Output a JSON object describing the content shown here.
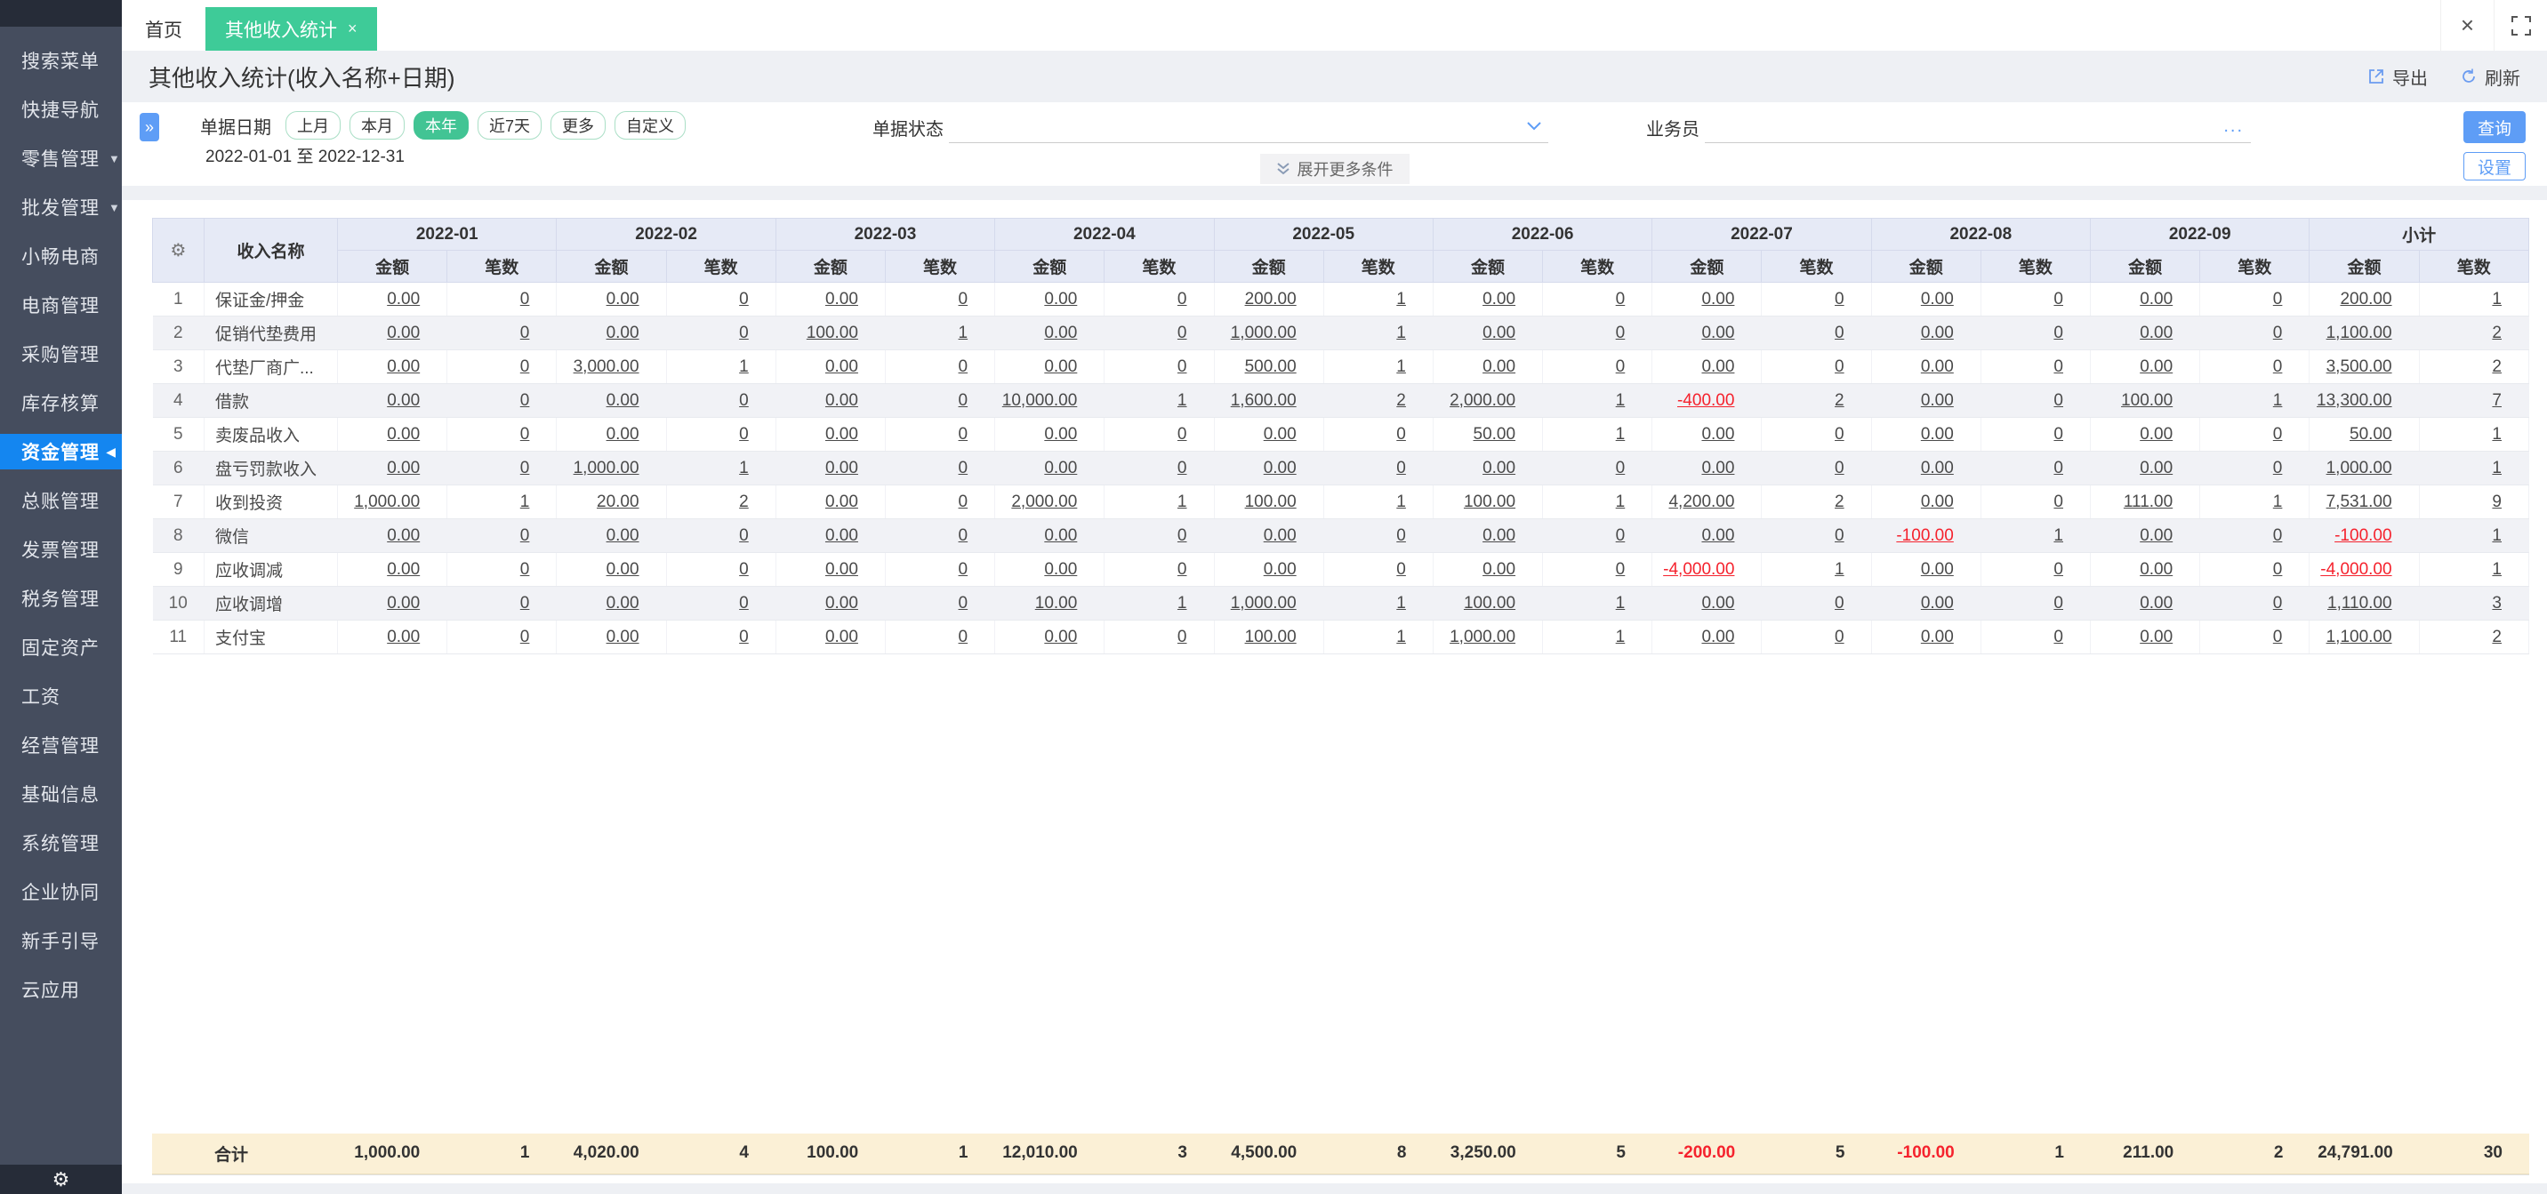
{
  "colors": {
    "sidebar_bg": "#454d5e",
    "sidebar_dark": "#262c38",
    "active_blue": "#1486f0",
    "tab_green": "#3ecb98",
    "pill_green": "#42c494",
    "button_blue": "#5e9df6",
    "header_bg": "#e6eaf6",
    "totals_bg": "#fbf0d6",
    "negative_red": "#f5222d",
    "titlebar_bg": "#eef0f4"
  },
  "sidebar": {
    "items": [
      {
        "label": "搜索菜单"
      },
      {
        "label": "快捷导航"
      },
      {
        "label": "零售管理",
        "expandable": true
      },
      {
        "label": "批发管理",
        "expandable": true
      },
      {
        "label": "小畅电商"
      },
      {
        "label": "电商管理"
      },
      {
        "label": "采购管理"
      },
      {
        "label": "库存核算"
      },
      {
        "label": "资金管理",
        "active": true
      },
      {
        "label": "总账管理"
      },
      {
        "label": "发票管理"
      },
      {
        "label": "税务管理"
      },
      {
        "label": "固定资产"
      },
      {
        "label": "工资"
      },
      {
        "label": "经营管理"
      },
      {
        "label": "基础信息"
      },
      {
        "label": "系统管理"
      },
      {
        "label": "企业协同"
      },
      {
        "label": "新手引导"
      },
      {
        "label": "云应用"
      }
    ],
    "gear_icon": "⚙"
  },
  "tabs": {
    "home": "首页",
    "active": "其他收入统计",
    "close": "×",
    "window_close": "×"
  },
  "page": {
    "title": "其他收入统计(收入名称+日期)",
    "export_label": "导出",
    "refresh_label": "刷新"
  },
  "filters": {
    "collapse_icon": "»",
    "date_label": "单据日期",
    "date_pills": [
      {
        "label": "上月"
      },
      {
        "label": "本月"
      },
      {
        "label": "本年",
        "active": true
      },
      {
        "label": "近7天"
      },
      {
        "label": "更多"
      },
      {
        "label": "自定义"
      }
    ],
    "date_range": "2022-01-01 至 2022-12-31",
    "status_label": "单据状态",
    "status_value": "",
    "seller_label": "业务员",
    "seller_value": "",
    "seller_more": "...",
    "query_label": "查询",
    "setting_label": "设置",
    "expand_more_label": "展开更多条件"
  },
  "table": {
    "gear_icon": "⚙",
    "name_header": "收入名称",
    "sub_amount": "金额",
    "sub_count": "笔数",
    "months": [
      "2022-01",
      "2022-02",
      "2022-03",
      "2022-04",
      "2022-05",
      "2022-06",
      "2022-07",
      "2022-08",
      "2022-09",
      "小计"
    ],
    "rows": [
      {
        "index": "1",
        "name": "保证金/押金",
        "cells": [
          [
            "0.00",
            "0"
          ],
          [
            "0.00",
            "0"
          ],
          [
            "0.00",
            "0"
          ],
          [
            "0.00",
            "0"
          ],
          [
            "200.00",
            "1"
          ],
          [
            "0.00",
            "0"
          ],
          [
            "0.00",
            "0"
          ],
          [
            "0.00",
            "0"
          ],
          [
            "0.00",
            "0"
          ],
          [
            "200.00",
            "1"
          ]
        ]
      },
      {
        "index": "2",
        "name": "促销代垫费用",
        "cells": [
          [
            "0.00",
            "0"
          ],
          [
            "0.00",
            "0"
          ],
          [
            "100.00",
            "1"
          ],
          [
            "0.00",
            "0"
          ],
          [
            "1,000.00",
            "1"
          ],
          [
            "0.00",
            "0"
          ],
          [
            "0.00",
            "0"
          ],
          [
            "0.00",
            "0"
          ],
          [
            "0.00",
            "0"
          ],
          [
            "1,100.00",
            "2"
          ]
        ]
      },
      {
        "index": "3",
        "name": "代垫厂商广...",
        "cells": [
          [
            "0.00",
            "0"
          ],
          [
            "3,000.00",
            "1"
          ],
          [
            "0.00",
            "0"
          ],
          [
            "0.00",
            "0"
          ],
          [
            "500.00",
            "1"
          ],
          [
            "0.00",
            "0"
          ],
          [
            "0.00",
            "0"
          ],
          [
            "0.00",
            "0"
          ],
          [
            "0.00",
            "0"
          ],
          [
            "3,500.00",
            "2"
          ]
        ]
      },
      {
        "index": "4",
        "name": "借款",
        "cells": [
          [
            "0.00",
            "0"
          ],
          [
            "0.00",
            "0"
          ],
          [
            "0.00",
            "0"
          ],
          [
            "10,000.00",
            "1"
          ],
          [
            "1,600.00",
            "2"
          ],
          [
            "2,000.00",
            "1"
          ],
          [
            "-400.00",
            "2"
          ],
          [
            "0.00",
            "0"
          ],
          [
            "100.00",
            "1"
          ],
          [
            "13,300.00",
            "7"
          ]
        ]
      },
      {
        "index": "5",
        "name": "卖废品收入",
        "cells": [
          [
            "0.00",
            "0"
          ],
          [
            "0.00",
            "0"
          ],
          [
            "0.00",
            "0"
          ],
          [
            "0.00",
            "0"
          ],
          [
            "0.00",
            "0"
          ],
          [
            "50.00",
            "1"
          ],
          [
            "0.00",
            "0"
          ],
          [
            "0.00",
            "0"
          ],
          [
            "0.00",
            "0"
          ],
          [
            "50.00",
            "1"
          ]
        ]
      },
      {
        "index": "6",
        "name": "盘亏罚款收入",
        "cells": [
          [
            "0.00",
            "0"
          ],
          [
            "1,000.00",
            "1"
          ],
          [
            "0.00",
            "0"
          ],
          [
            "0.00",
            "0"
          ],
          [
            "0.00",
            "0"
          ],
          [
            "0.00",
            "0"
          ],
          [
            "0.00",
            "0"
          ],
          [
            "0.00",
            "0"
          ],
          [
            "0.00",
            "0"
          ],
          [
            "1,000.00",
            "1"
          ]
        ]
      },
      {
        "index": "7",
        "name": "收到投资",
        "cells": [
          [
            "1,000.00",
            "1"
          ],
          [
            "20.00",
            "2"
          ],
          [
            "0.00",
            "0"
          ],
          [
            "2,000.00",
            "1"
          ],
          [
            "100.00",
            "1"
          ],
          [
            "100.00",
            "1"
          ],
          [
            "4,200.00",
            "2"
          ],
          [
            "0.00",
            "0"
          ],
          [
            "111.00",
            "1"
          ],
          [
            "7,531.00",
            "9"
          ]
        ]
      },
      {
        "index": "8",
        "name": "微信",
        "cells": [
          [
            "0.00",
            "0"
          ],
          [
            "0.00",
            "0"
          ],
          [
            "0.00",
            "0"
          ],
          [
            "0.00",
            "0"
          ],
          [
            "0.00",
            "0"
          ],
          [
            "0.00",
            "0"
          ],
          [
            "0.00",
            "0"
          ],
          [
            "-100.00",
            "1"
          ],
          [
            "0.00",
            "0"
          ],
          [
            "-100.00",
            "1"
          ]
        ]
      },
      {
        "index": "9",
        "name": "应收调减",
        "cells": [
          [
            "0.00",
            "0"
          ],
          [
            "0.00",
            "0"
          ],
          [
            "0.00",
            "0"
          ],
          [
            "0.00",
            "0"
          ],
          [
            "0.00",
            "0"
          ],
          [
            "0.00",
            "0"
          ],
          [
            "-4,000.00",
            "1"
          ],
          [
            "0.00",
            "0"
          ],
          [
            "0.00",
            "0"
          ],
          [
            "-4,000.00",
            "1"
          ]
        ]
      },
      {
        "index": "10",
        "name": "应收调增",
        "cells": [
          [
            "0.00",
            "0"
          ],
          [
            "0.00",
            "0"
          ],
          [
            "0.00",
            "0"
          ],
          [
            "10.00",
            "1"
          ],
          [
            "1,000.00",
            "1"
          ],
          [
            "100.00",
            "1"
          ],
          [
            "0.00",
            "0"
          ],
          [
            "0.00",
            "0"
          ],
          [
            "0.00",
            "0"
          ],
          [
            "1,110.00",
            "3"
          ]
        ]
      },
      {
        "index": "11",
        "name": "支付宝",
        "cells": [
          [
            "0.00",
            "0"
          ],
          [
            "0.00",
            "0"
          ],
          [
            "0.00",
            "0"
          ],
          [
            "0.00",
            "0"
          ],
          [
            "100.00",
            "1"
          ],
          [
            "1,000.00",
            "1"
          ],
          [
            "0.00",
            "0"
          ],
          [
            "0.00",
            "0"
          ],
          [
            "0.00",
            "0"
          ],
          [
            "1,100.00",
            "2"
          ]
        ]
      }
    ],
    "totals": {
      "label": "合计",
      "cells": [
        [
          "1,000.00",
          "1"
        ],
        [
          "4,020.00",
          "4"
        ],
        [
          "100.00",
          "1"
        ],
        [
          "12,010.00",
          "3"
        ],
        [
          "4,500.00",
          "8"
        ],
        [
          "3,250.00",
          "5"
        ],
        [
          "-200.00",
          "5"
        ],
        [
          "-100.00",
          "1"
        ],
        [
          "211.00",
          "2"
        ],
        [
          "24,791.00",
          "30"
        ]
      ]
    }
  }
}
